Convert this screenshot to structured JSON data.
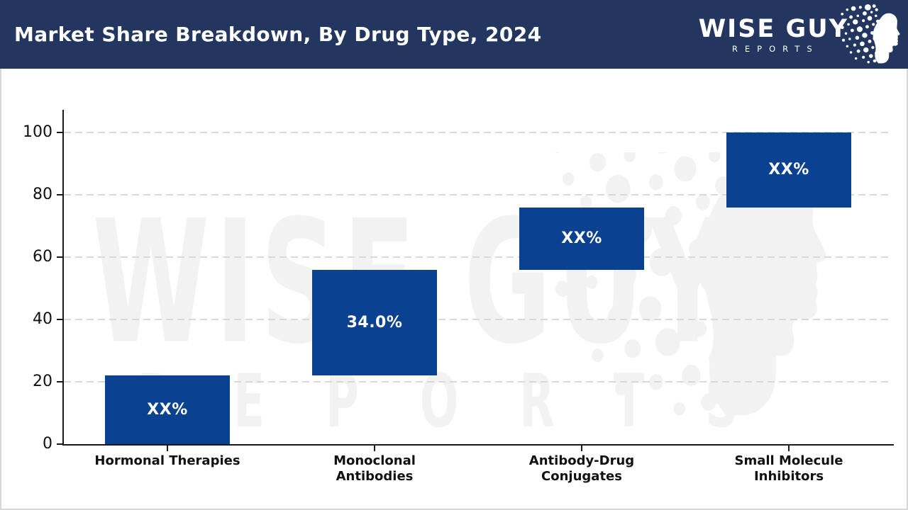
{
  "header": {
    "title": "Market Share Breakdown, By Drug Type, 2024",
    "background_color": "#22365f",
    "logo": {
      "line1": "WISE GUY",
      "line2": "REPORTS"
    }
  },
  "watermark": {
    "line1": "WISE GUY",
    "line2": "REPORTS"
  },
  "chart_data": {
    "type": "bar",
    "variant": "floating-waterfall",
    "title": "Market Share Breakdown, By Drug Type, 2024",
    "ylim": [
      0,
      100
    ],
    "yticks": [
      "0",
      "20",
      "40",
      "60",
      "80",
      "100"
    ],
    "grid": {
      "axis": "y",
      "style": "dashed",
      "color": "#d9d9d9"
    },
    "bar_color": "#0b4191",
    "axis_color": "#1a1a1a",
    "legend": null,
    "categories": [
      {
        "label": "Hormonal Therapies",
        "label_lines": [
          "Hormonal Therapies"
        ],
        "start": 0,
        "end": 22,
        "value_label": "XX%"
      },
      {
        "label": "Monoclonal Antibodies",
        "label_lines": [
          "Monoclonal",
          "Antibodies"
        ],
        "start": 22,
        "end": 56,
        "value_label": "34.0%"
      },
      {
        "label": "Antibody-Drug Conjugates",
        "label_lines": [
          "Antibody-Drug",
          "Conjugates"
        ],
        "start": 56,
        "end": 76,
        "value_label": "XX%"
      },
      {
        "label": "Small Molecule Inhibitors",
        "label_lines": [
          "Small Molecule",
          "Inhibitors"
        ],
        "start": 76,
        "end": 100,
        "value_label": "XX%"
      }
    ]
  }
}
